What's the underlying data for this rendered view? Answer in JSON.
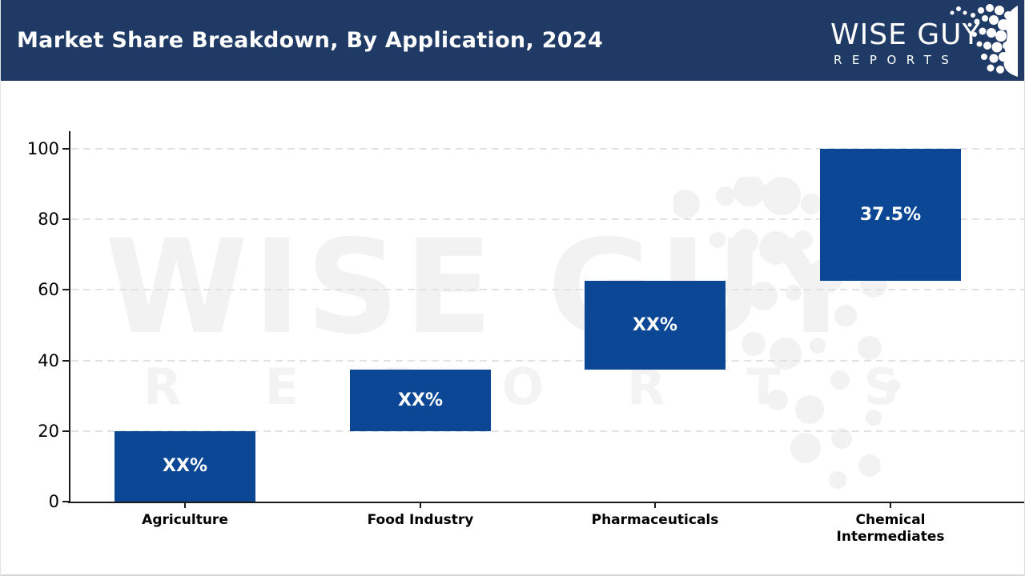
{
  "header": {
    "title": "Market Share Breakdown, By Application, 2024",
    "logo": {
      "brand": "WISE GUY",
      "sub": "REPORTS"
    }
  },
  "watermark": {
    "brand": "WISE GUY",
    "sub": "REPORTS"
  },
  "colors": {
    "header_bg": "#203a66",
    "bar": "#0b4795",
    "bar_label": "#ffffff",
    "grid": "#e2e2e2",
    "axis": "#1a1a1a",
    "tick_label": "#000000",
    "watermark": "#f2f2f2"
  },
  "chart_data": {
    "type": "bar",
    "subtype": "floating-waterfall",
    "title": "Market Share Breakdown, By Application, 2024",
    "categories": [
      "Agriculture",
      "Food Industry",
      "Pharmaceuticals",
      "Chemical Intermediates"
    ],
    "segments": [
      {
        "category": "Agriculture",
        "from": 0,
        "to": 20,
        "label": "XX%"
      },
      {
        "category": "Food Industry",
        "from": 20,
        "to": 37.5,
        "label": "XX%"
      },
      {
        "category": "Pharmaceuticals",
        "from": 37.5,
        "to": 62.5,
        "label": "XX%"
      },
      {
        "category": "Chemical Intermediates",
        "from": 62.5,
        "to": 100,
        "label": "37.5%"
      }
    ],
    "xlabel": "",
    "ylabel": "",
    "ylim": [
      0,
      100
    ],
    "yticks": [
      0,
      20,
      40,
      60,
      80,
      100
    ],
    "grid": "horizontal-dashed",
    "legend": "none",
    "bar_color": "#0b4795",
    "bar_label_color": "#ffffff"
  }
}
